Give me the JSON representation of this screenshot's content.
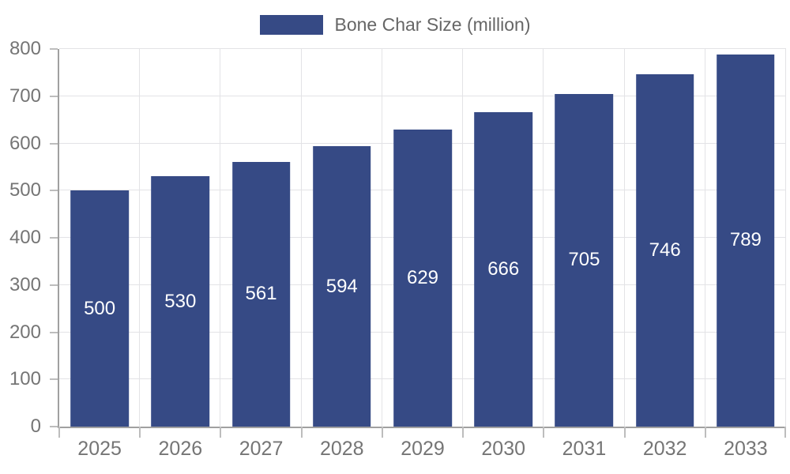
{
  "chart_data": {
    "type": "bar",
    "title": "",
    "legend": "Bone Char Size (million)",
    "categories": [
      "2025",
      "2026",
      "2027",
      "2028",
      "2029",
      "2030",
      "2031",
      "2032",
      "2033"
    ],
    "values": [
      500,
      530,
      561,
      594,
      629,
      666,
      705,
      746,
      789
    ],
    "xlabel": "",
    "ylabel": "",
    "ylim": [
      0,
      800
    ],
    "ytick_step": 100,
    "yticks": [
      "0",
      "100",
      "200",
      "300",
      "400",
      "500",
      "600",
      "700",
      "800"
    ],
    "grid": true,
    "legend_position": "top",
    "value_labels": "inside-center",
    "colors": {
      "bar": "#364a85",
      "value_label": "#ffffff",
      "axis_text": "#757575",
      "legend_text": "#666666",
      "grid_line": "#e3e3e6",
      "axis_line": "#a0a0a0",
      "tick": "#bdbdbd",
      "background": "#ffffff"
    }
  }
}
